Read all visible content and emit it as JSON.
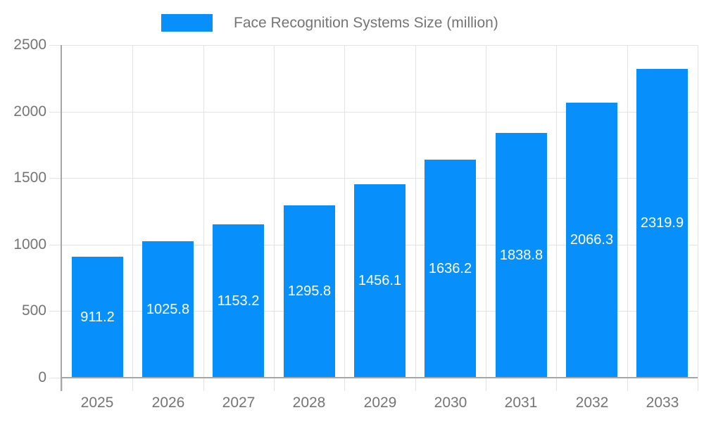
{
  "legend": {
    "label": "Face Recognition Systems Size (million)"
  },
  "colors": {
    "bar": "#0790fb",
    "axis_text": "#757575",
    "grid_line": "#e3e3e3",
    "axis_line": "#a6a6a6",
    "value_label": "#ffffff",
    "background": "#ffffff"
  },
  "chart_data": {
    "type": "bar",
    "title": "Face Recognition Systems Size (million)",
    "categories": [
      "2025",
      "2026",
      "2027",
      "2028",
      "2029",
      "2030",
      "2031",
      "2032",
      "2033"
    ],
    "values": [
      911.2,
      1025.8,
      1153.2,
      1295.8,
      1456.1,
      1636.2,
      1838.8,
      2066.3,
      2319.9
    ],
    "series_name": "Face Recognition Systems Size (million)",
    "xlabel": "",
    "ylabel": "",
    "ylim": [
      0,
      2500
    ],
    "yticks": [
      0,
      500,
      1000,
      1500,
      2000,
      2500
    ],
    "grid": "on",
    "legend_position": "top",
    "value_label_style": "white, centered inside bar"
  }
}
